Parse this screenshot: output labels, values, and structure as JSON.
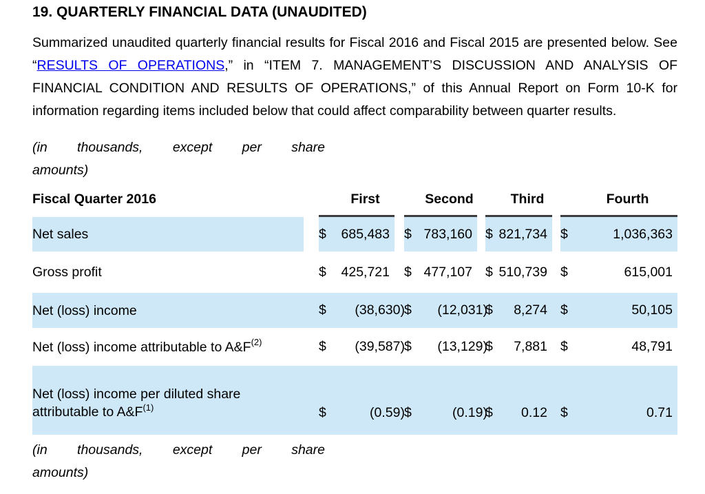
{
  "heading": "19. QUARTERLY FINANCIAL DATA (UNAUDITED)",
  "intro": {
    "text_before_link": "Summarized unaudited quarterly financial results for Fiscal 2016 and Fiscal 2015 are presented below. See “",
    "link_text": "RESULTS OF OPERATIONS",
    "text_after_link": ",” in “ITEM 7. MANAGEMENT’S DISCUSSION AND ANALYSIS OF FINANCIAL CONDITION AND RESULTS OF OPERATIONS,” of this Annual Report on Form 10-K for information regarding items included below that could affect comparability between quarter results."
  },
  "units_note": {
    "lines": [
      "(in thousands, except per share",
      "amounts)"
    ]
  },
  "table": {
    "title": "Fiscal Quarter 2016",
    "columns": [
      "First",
      "Second",
      "Third",
      "Fourth"
    ],
    "currency_symbol": "$",
    "rows": [
      {
        "label": "Net sales",
        "sup": "",
        "values": [
          "685,483",
          "783,160",
          "821,734",
          "1,036,363"
        ],
        "shaded": true,
        "seams": true
      },
      {
        "label": "Gross profit",
        "sup": "",
        "values": [
          "425,721",
          "477,107",
          "510,739",
          "615,001"
        ],
        "shaded": false
      },
      {
        "label": "Net (loss) income",
        "sup": "",
        "values": [
          "(38,630)",
          "(12,031)",
          "8,274",
          "50,105"
        ],
        "shaded": true
      },
      {
        "label": "Net (loss) income attributable to A&F",
        "sup": "(2)",
        "values": [
          "(39,587)",
          "(13,129)",
          "7,881",
          "48,791"
        ],
        "shaded": false
      },
      {
        "label": "Net (loss) income per diluted share attributable to A&F",
        "sup": "(1)",
        "values": [
          "(0.59)",
          "(0.19)",
          "0.12",
          "0.71"
        ],
        "shaded": true,
        "tall": true
      }
    ]
  },
  "footer_note": {
    "lines": [
      "(in thousands, except per share",
      "amounts)"
    ]
  },
  "colors": {
    "row_shade": "#cfe8f7",
    "link_blue": "#0000ee",
    "header_rule": "#3d3d3d",
    "text": "#000000"
  }
}
